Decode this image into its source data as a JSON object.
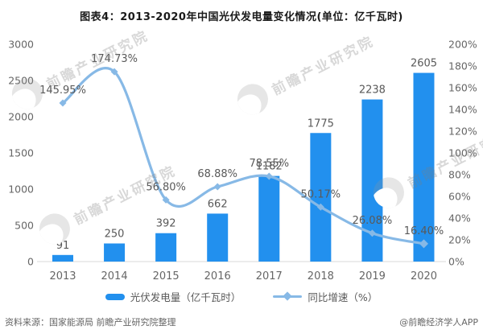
{
  "title": "图表4：2013-2020年中国光伏发电量变化情况(单位：亿千瓦时)",
  "chart_data": {
    "type": "bar",
    "subtype": "combo-bar-line",
    "categories": [
      "2013",
      "2014",
      "2015",
      "2016",
      "2017",
      "2018",
      "2019",
      "2020"
    ],
    "series": [
      {
        "name": "光伏发电量（亿千瓦时）",
        "type": "bar",
        "axis": "left",
        "color": "#2290EE",
        "values": [
          91,
          250,
          392,
          662,
          1182,
          1775,
          2238,
          2605
        ],
        "labels": [
          "91",
          "250",
          "392",
          "662",
          "1182",
          "1775",
          "2238",
          "2605"
        ]
      },
      {
        "name": "同比增速（%）",
        "type": "line",
        "axis": "right",
        "color": "#87B9E6",
        "values": [
          145.95,
          174.73,
          56.8,
          68.88,
          78.55,
          50.17,
          26.08,
          16.4
        ],
        "labels": [
          "145.95%",
          "174.73%",
          "56.80%",
          "68.88%",
          "78.55%",
          "50.17%",
          "26.08%",
          "16.40%"
        ]
      }
    ],
    "left_axis": {
      "min": 0,
      "max": 3000,
      "step": 500,
      "ticks": [
        "3000",
        "2500",
        "2000",
        "1500",
        "1000",
        "500",
        "0"
      ]
    },
    "right_axis": {
      "min": 0,
      "max": 200,
      "step": 20,
      "ticks": [
        "200%",
        "180%",
        "160%",
        "140%",
        "120%",
        "100%",
        "80%",
        "60%",
        "40%",
        "20%",
        "0%"
      ]
    },
    "grid": false,
    "legend_position": "bottom",
    "axis_line_color": "#D9D9D9"
  },
  "legend": {
    "items": [
      {
        "label": "光伏发电量（亿千瓦时）"
      },
      {
        "label": "同比增速（%）"
      }
    ]
  },
  "watermark": {
    "text": "前瞻产业研究院"
  },
  "footer": {
    "source": "资料来源：国家能源局 前瞻产业研究院整理",
    "credit": "@前瞻经济学人APP"
  }
}
